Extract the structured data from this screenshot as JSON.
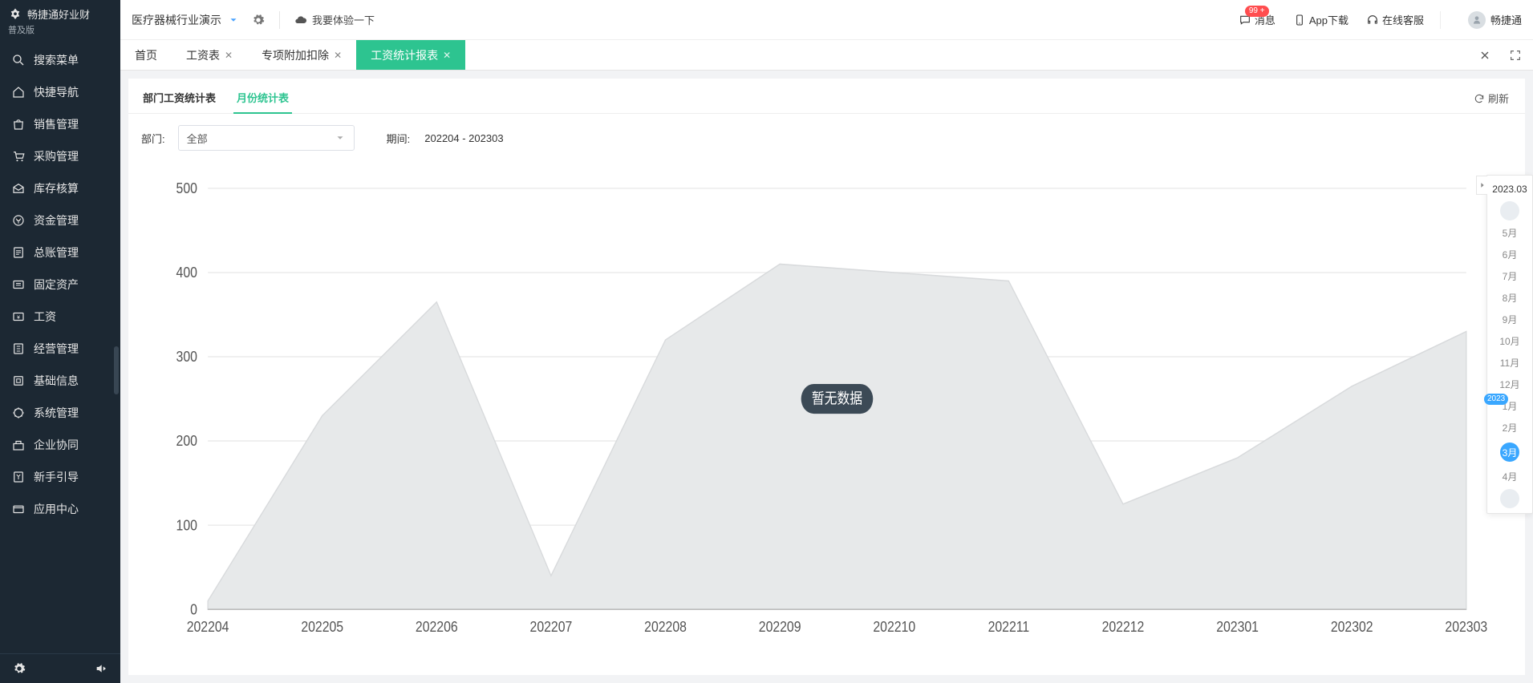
{
  "logo_text": "畅捷通好业财",
  "logo_version": "普及版",
  "sidebar": {
    "items": [
      {
        "icon": "search",
        "label": "搜索菜单"
      },
      {
        "icon": "home",
        "label": "快捷导航"
      },
      {
        "icon": "bag",
        "label": "销售管理"
      },
      {
        "icon": "cart",
        "label": "采购管理"
      },
      {
        "icon": "stock",
        "label": "库存核算"
      },
      {
        "icon": "money",
        "label": "资金管理"
      },
      {
        "icon": "ledger",
        "label": "总账管理"
      },
      {
        "icon": "asset",
        "label": "固定资产"
      },
      {
        "icon": "salary",
        "label": "工资"
      },
      {
        "icon": "biz",
        "label": "经营管理"
      },
      {
        "icon": "base",
        "label": "基础信息"
      },
      {
        "icon": "sys",
        "label": "系统管理"
      },
      {
        "icon": "coop",
        "label": "企业协同"
      },
      {
        "icon": "guide",
        "label": "新手引导"
      },
      {
        "icon": "apps",
        "label": "应用中心"
      }
    ]
  },
  "topbar": {
    "org": "医疗器械行业演示",
    "try_label": "我要体验一下",
    "msg_label": "消息",
    "msg_badge": "99 +",
    "app_label": "App下载",
    "service_label": "在线客服",
    "user_name": "畅捷通"
  },
  "tabs": [
    {
      "label": "首页",
      "closable": false,
      "active": false
    },
    {
      "label": "工资表",
      "closable": true,
      "active": false
    },
    {
      "label": "专项附加扣除",
      "closable": true,
      "active": false
    },
    {
      "label": "工资统计报表",
      "closable": true,
      "active": true
    }
  ],
  "subtabs": [
    {
      "label": "部门工资统计表",
      "active": false
    },
    {
      "label": "月份统计表",
      "active": true
    }
  ],
  "refresh_label": "刷新",
  "filters": {
    "dept_label": "部门:",
    "dept_value": "全部",
    "period_label": "期间:",
    "period_value": "202204 - 202303"
  },
  "chart": {
    "type": "area",
    "fill_color": "#e7e9ea",
    "stroke_color": "#d8dadc",
    "background_color": "#ffffff",
    "axis_color": "#bcbcbc",
    "grid_color": "#ececec",
    "label_color": "#555555",
    "label_fontsize": 12,
    "ylim": [
      0,
      500
    ],
    "ytick_step": 100,
    "categories": [
      "202204",
      "202205",
      "202206",
      "202207",
      "202208",
      "202209",
      "202210",
      "202211",
      "202212",
      "202301",
      "202302",
      "202303"
    ],
    "values": [
      10,
      230,
      365,
      40,
      320,
      410,
      400,
      390,
      125,
      180,
      265,
      330
    ],
    "nodata_label": "暂无数据",
    "nodata_pill_color": "#3c4a56"
  },
  "month_rail": {
    "header": "2023.03",
    "year_chip": "2023",
    "items": [
      {
        "label": "5月",
        "active": false
      },
      {
        "label": "6月",
        "active": false
      },
      {
        "label": "7月",
        "active": false
      },
      {
        "label": "8月",
        "active": false
      },
      {
        "label": "9月",
        "active": false
      },
      {
        "label": "10月",
        "active": false
      },
      {
        "label": "11月",
        "active": false
      },
      {
        "label": "12月",
        "active": false
      },
      {
        "label": "1月",
        "active": false,
        "year_start": true
      },
      {
        "label": "2月",
        "active": false
      },
      {
        "label": "3月",
        "active": true
      },
      {
        "label": "4月",
        "active": false
      }
    ]
  }
}
